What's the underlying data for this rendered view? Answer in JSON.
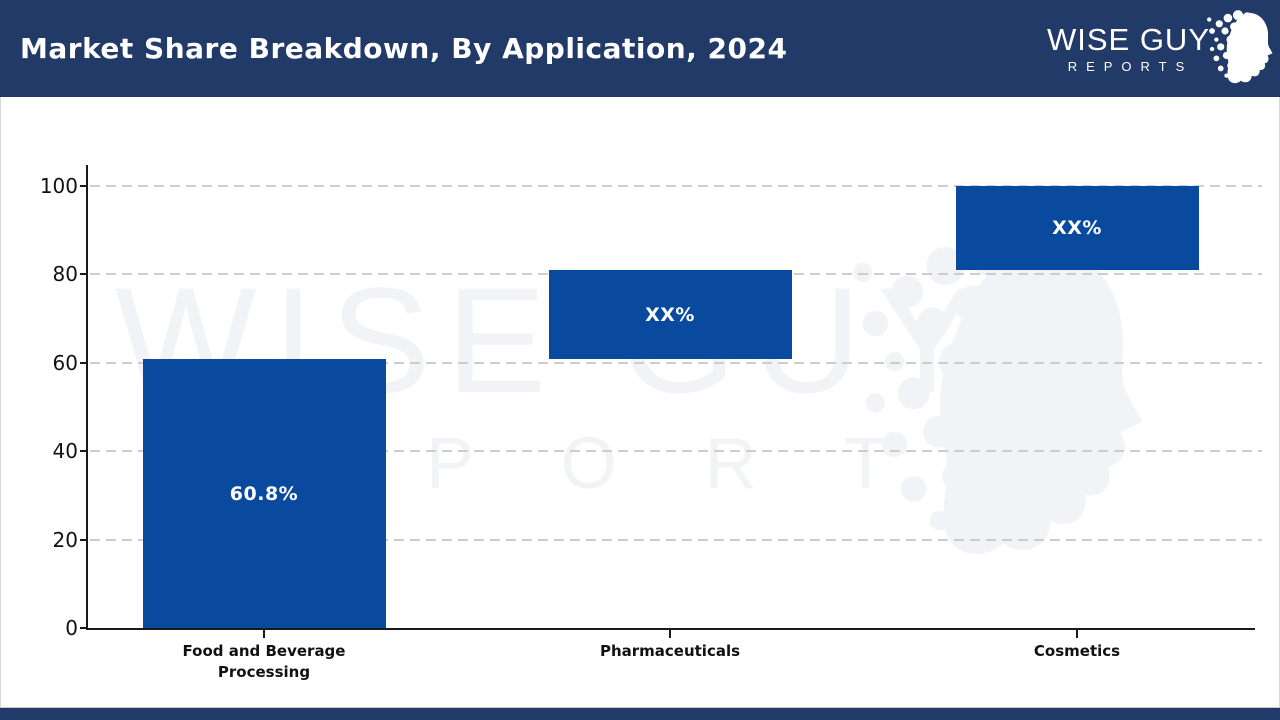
{
  "header": {
    "title": "Market Share Breakdown, By Application, 2024"
  },
  "logo": {
    "wordmark": "WISE GUY",
    "tagline": "REPORTS"
  },
  "watermark": {
    "wordmark": "WISE GUY",
    "tagline": "R E P O R T S"
  },
  "chart_data": {
    "type": "bar",
    "subtype": "waterfall",
    "title": "Market Share Breakdown, By Application, 2024",
    "categories": [
      "Food and Beverage Processing",
      "Pharmaceuticals",
      "Cosmetics"
    ],
    "segments": [
      {
        "category": "Food and Beverage Processing",
        "start": 0,
        "end": 60.8,
        "label": "60.8%"
      },
      {
        "category": "Pharmaceuticals",
        "start": 60.8,
        "end": 81,
        "label": "XX%"
      },
      {
        "category": "Cosmetics",
        "start": 81,
        "end": 100,
        "label": "XX%"
      }
    ],
    "xlabel": "",
    "ylabel": "",
    "yticks": [
      0,
      20,
      40,
      60,
      80,
      100
    ],
    "ylim": [
      0,
      108
    ],
    "grid": {
      "axis": "y",
      "style": "dashed",
      "color": "#cccccc"
    },
    "legend": "none"
  },
  "colors": {
    "header_bg": "#213a67",
    "footer_bg": "#213a67",
    "bar": "#0a4a9e",
    "bar_label": "#ffffff",
    "watermark": "#f2f3f6",
    "grid": "#cdcdcd",
    "axis": "#1a1a1a"
  }
}
